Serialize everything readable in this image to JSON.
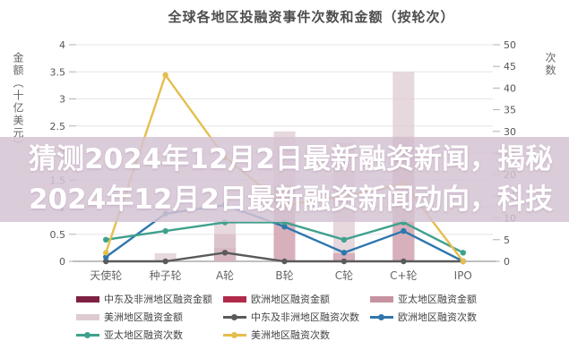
{
  "title": "全球各地区投融资事件次数和金额（按轮次）",
  "overlay": {
    "line1": "猜测2024年12月2日最新融资新闻，揭秘",
    "line2": "2024年12月2日最新融资新闻动向，科技"
  },
  "axes": {
    "left_label": "金额（十亿美元）",
    "right_label": "次数",
    "left_tick_labels": [
      "4",
      "3.5",
      "3",
      "2.5",
      "2",
      "1.5",
      "1",
      "0.5",
      "0"
    ],
    "right_tick_labels": [
      "50",
      "45",
      "40",
      "35",
      "30",
      "25",
      "20",
      "15",
      "10",
      "5",
      "0"
    ]
  },
  "colors": {
    "grid": "#e8e4e8",
    "axis_line": "#999999",
    "tick_text": "#555555",
    "xlabel_text": "#666666",
    "overlay_band": "#d5c3d3",
    "overlay_text": "#ffffff"
  },
  "chart_data": {
    "type": "bar+line",
    "categories": [
      "天使轮",
      "种子轮",
      "A轮",
      "B轮",
      "C轮",
      "C+轮",
      "IPO"
    ],
    "left_axis": {
      "label": "金额（十亿美元）",
      "min": 0,
      "max": 4,
      "step": 0.5
    },
    "right_axis": {
      "label": "次数",
      "min": 0,
      "max": 50,
      "step": 5
    },
    "grid": true,
    "legend_position": "bottom",
    "series": [
      {
        "name": "中东及非洲地区融资金额",
        "type": "bar",
        "axis": "left",
        "color": "#7e2144",
        "values": [
          0,
          0,
          0.1,
          0,
          0,
          0,
          0
        ]
      },
      {
        "name": "欧洲地区融资金额",
        "type": "bar",
        "axis": "left",
        "color": "#b02a4a",
        "values": [
          0,
          0,
          0.25,
          1.4,
          0.15,
          2.3,
          0
        ]
      },
      {
        "name": "亚太地区融资金额",
        "type": "bar",
        "axis": "left",
        "color": "#c793a1",
        "values": [
          0,
          0,
          0.5,
          0,
          0,
          0,
          0
        ]
      },
      {
        "name": "美洲地区融资金额",
        "type": "bar",
        "axis": "left",
        "color": "#decbd1",
        "values": [
          0,
          0.15,
          0.75,
          2.4,
          2.2,
          3.5,
          0
        ]
      },
      {
        "name": "中东及非洲地区融资次数",
        "type": "line",
        "axis": "right",
        "color": "#5a5a5a",
        "values": [
          0,
          0,
          2,
          0,
          0,
          0,
          0
        ]
      },
      {
        "name": "欧洲地区融资次数",
        "type": "line",
        "axis": "right",
        "color": "#2e77ae",
        "values": [
          1,
          11,
          13,
          8,
          2,
          7,
          0
        ]
      },
      {
        "name": "亚太地区融资次数",
        "type": "line",
        "axis": "right",
        "color": "#3fa18c",
        "values": [
          5,
          7,
          9,
          9,
          5,
          9,
          2
        ]
      },
      {
        "name": "美洲地区融资次数",
        "type": "line",
        "axis": "right",
        "color": "#e5be4e",
        "values": [
          2,
          43,
          24,
          13,
          15,
          18,
          0
        ]
      }
    ]
  }
}
